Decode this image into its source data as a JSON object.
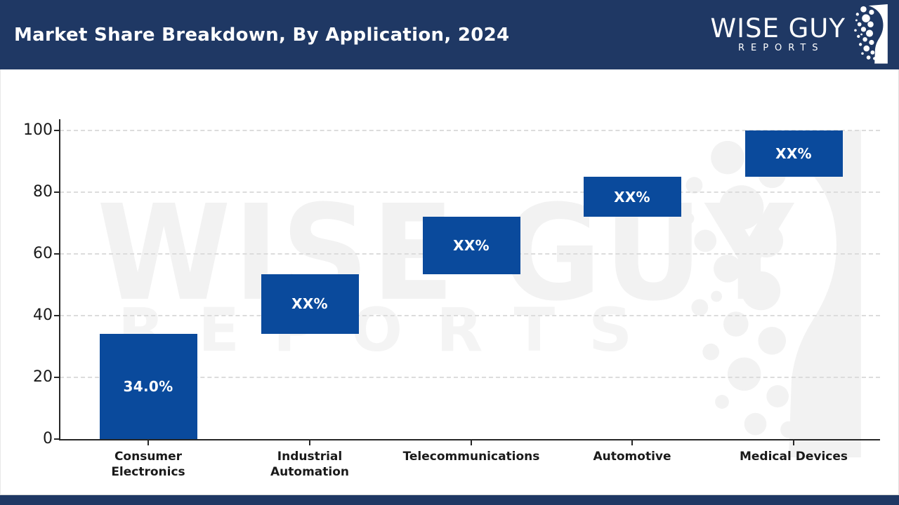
{
  "header": {
    "title": "Market Share Breakdown, By Application, 2024",
    "logo": {
      "line1": "WISE GUY",
      "line2": "REPORTS"
    }
  },
  "watermark": {
    "line1": "WISE GUY",
    "line2": "REPORTS"
  },
  "chart_data": {
    "type": "bar",
    "subtype": "waterfall",
    "title": "Market Share Breakdown, By Application, 2024",
    "categories": [
      "Consumer Electronics",
      "Industrial Automation",
      "Telecommunications",
      "Automotive",
      "Medical Devices"
    ],
    "tick_label_lines": [
      [
        "Consumer",
        "Electronics"
      ],
      [
        "Industrial",
        "Automation"
      ],
      [
        "Telecommunications"
      ],
      [
        "Automotive"
      ],
      [
        "Medical Devices"
      ]
    ],
    "segments": [
      {
        "category": "Consumer Electronics",
        "start": 0,
        "end": 34.0,
        "label": "34.0%"
      },
      {
        "category": "Industrial Automation",
        "start": 34.0,
        "end": 53.5,
        "label": "XX%"
      },
      {
        "category": "Telecommunications",
        "start": 53.5,
        "end": 72.0,
        "label": "XX%"
      },
      {
        "category": "Automotive",
        "start": 72.0,
        "end": 85.0,
        "label": "XX%"
      },
      {
        "category": "Medical Devices",
        "start": 85.0,
        "end": 100.0,
        "label": "XX%"
      }
    ],
    "yticks": [
      0,
      20,
      40,
      60,
      80,
      100
    ],
    "ylim": [
      0,
      108
    ],
    "xlabel": "",
    "ylabel": "",
    "grid": "horizontal-dashed",
    "legend": "none"
  },
  "colors": {
    "header_bg": "#1f3864",
    "footer_bg": "#1f3864",
    "bar": "#0a4a9c",
    "bar_label": "#ffffff",
    "grid": "#dcdcdc",
    "axis": "#262626",
    "tick_label": "#1a1a1a",
    "watermark": "#f2f2f2"
  }
}
